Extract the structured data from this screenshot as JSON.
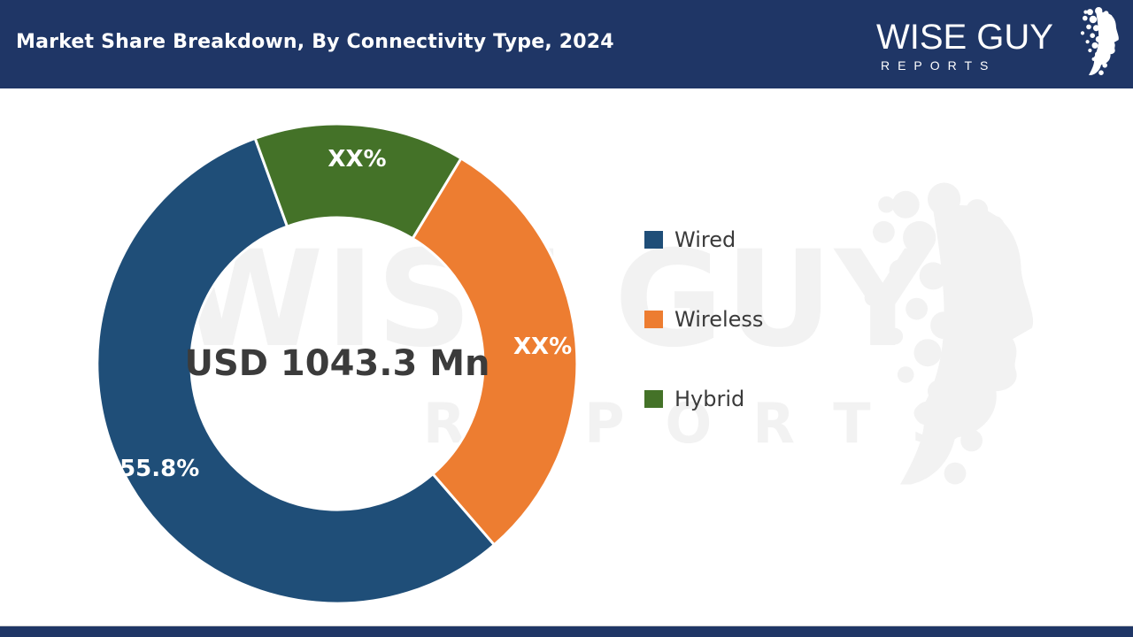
{
  "header": {
    "title": "Market Share Breakdown, By Connectivity Type, 2024",
    "logo": {
      "line1": "WISE GUY",
      "line2": "REPORTS"
    }
  },
  "chart_data": {
    "type": "pie",
    "variant": "donut",
    "title": "Market Share Breakdown, By Connectivity Type, 2024",
    "center_label": "USD 1043.3 Mn",
    "categories": [
      "Wired",
      "Wireless",
      "Hybrid"
    ],
    "values": [
      55.8,
      30.0,
      14.2
    ],
    "value_labels_shown": [
      "55.8%",
      "XX%",
      "XX%"
    ],
    "colors": [
      "#1F4E78",
      "#ED7D31",
      "#447228"
    ],
    "legend_position": "right",
    "start_angle_deg": 139.1,
    "direction": "clockwise",
    "inner_radius_ratio": 0.61,
    "slices_draw_order": [
      {
        "label": "Wired",
        "value": 55.8,
        "display_label": "55.8%",
        "color": "#1F4E78"
      },
      {
        "label": "Hybrid",
        "value": 14.2,
        "display_label": "XX%",
        "color": "#447228"
      },
      {
        "label": "Wireless",
        "value": 30.0,
        "display_label": "XX%",
        "color": "#ED7D31"
      }
    ]
  },
  "legend": {
    "items": [
      {
        "label": "Wired",
        "color": "#1F4E78"
      },
      {
        "label": "Wireless",
        "color": "#ED7D31"
      },
      {
        "label": "Hybrid",
        "color": "#447228"
      }
    ]
  },
  "watermark": {
    "line1": "WISE GUY",
    "line2": "REPORTS"
  },
  "theme": {
    "navy": "#1F3666",
    "text_dark": "#3A3A3A",
    "watermark_gray": "#F2F2F2"
  }
}
